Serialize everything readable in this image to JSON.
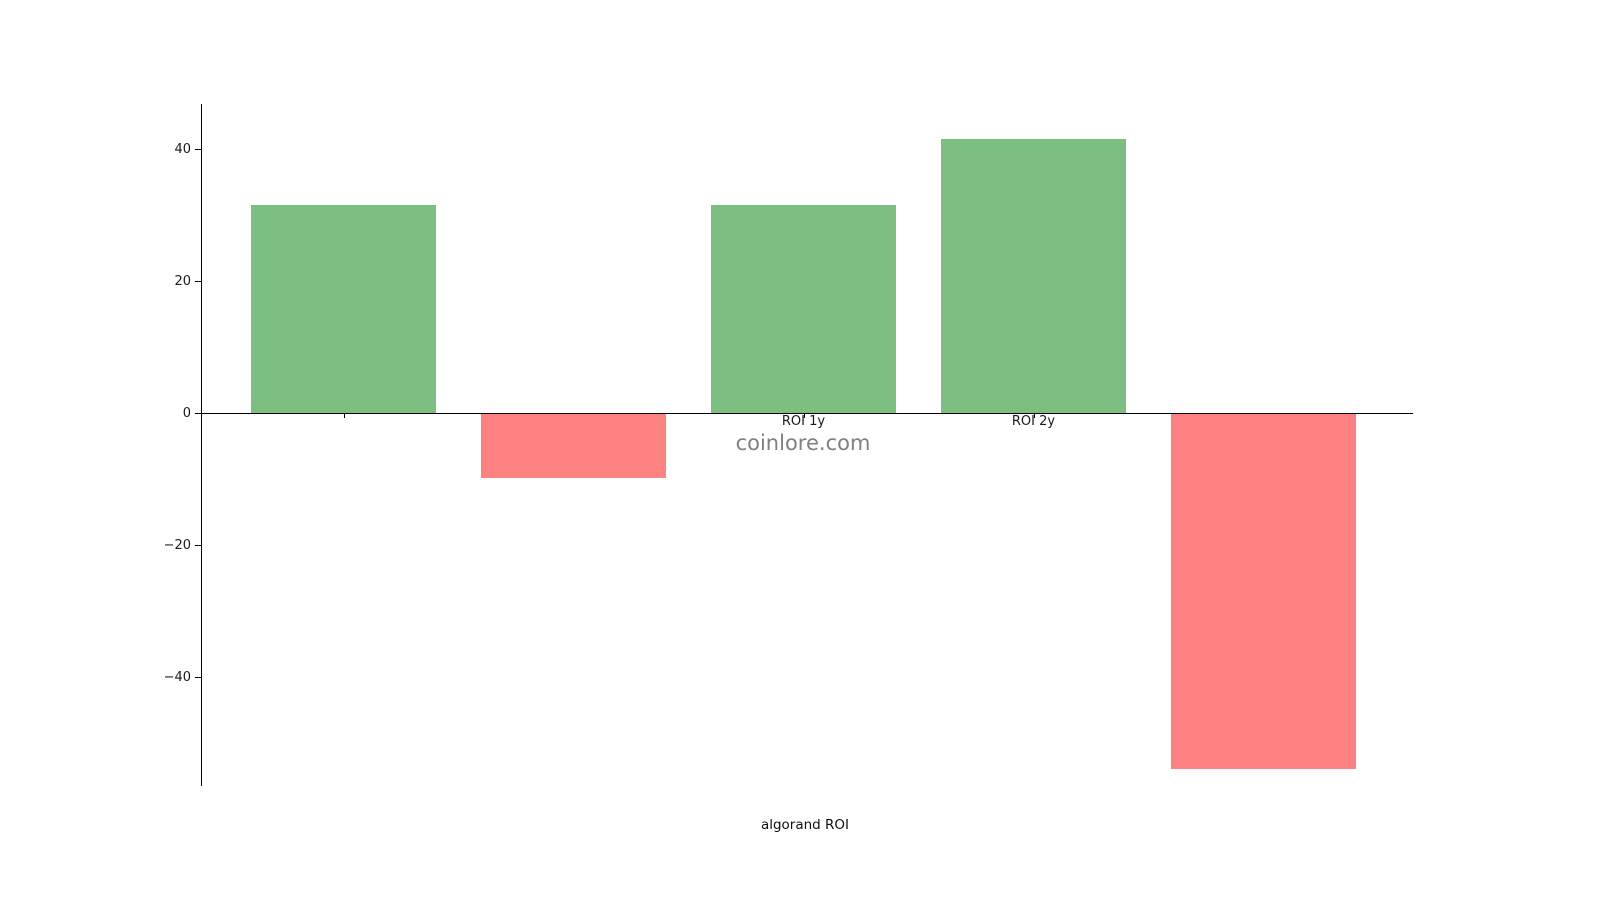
{
  "page": {
    "watermark": "coinlore.com"
  },
  "chart_data": {
    "type": "bar",
    "title": "algorand ROI",
    "title_position": "bottom",
    "categories": [
      "",
      "",
      "ROI 1y",
      "ROI 2y",
      ""
    ],
    "values": [
      31.5,
      -9.8,
      31.5,
      41.5,
      -54.0
    ],
    "bar_colors": [
      "#7dbe81",
      "#fd8181",
      "#7dbe81",
      "#7dbe81",
      "#fd8181"
    ],
    "positive_color": "#7dbe81",
    "negative_color": "#fd8181",
    "xlabel": "",
    "ylabel": "",
    "y_ticks": [
      40,
      20,
      0,
      -20,
      -40
    ],
    "y_tick_labels": [
      "40",
      "20",
      "0",
      "−20",
      "−40"
    ],
    "ylim": [
      -56.5,
      47
    ],
    "grid": false,
    "legend": null,
    "axis_color": "#000000",
    "watermark": "coinlore.com",
    "watermark_color": "#808080"
  }
}
